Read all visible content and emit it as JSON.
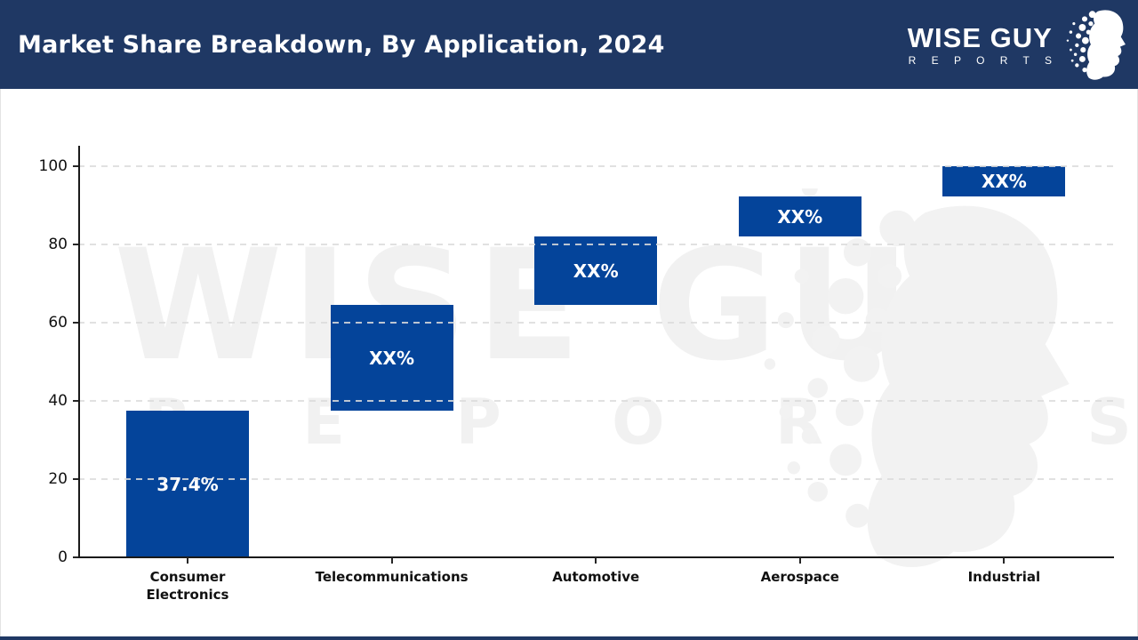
{
  "header": {
    "title": "Market Share Breakdown, By Application, 2024",
    "logo": {
      "line1": "WISE GUY",
      "line2": "R E P O R T S"
    }
  },
  "watermark": {
    "line1": "WISE GUY",
    "line2": "R E P O R T S"
  },
  "colors": {
    "header_bg": "#1f3864",
    "footer_bg": "#1f3864",
    "bar": "#04449a",
    "bar_label": "#ffffff",
    "axis": "#1a1a1a",
    "grid": "#dcdcdc",
    "watermark": "#f1f1f1"
  },
  "chart_data": {
    "type": "bar",
    "variant": "waterfall",
    "title": "Market Share Breakdown, By Application, 2024",
    "ylabel": "",
    "xlabel": "",
    "ylim": [
      0,
      105
    ],
    "y_ticks": [
      0,
      20,
      40,
      60,
      80,
      100
    ],
    "grid": "horizontal-dashed",
    "legend": "none",
    "categories": [
      "Consumer Electronics",
      "Telecommunications",
      "Automotive",
      "Aerospace",
      "Industrial"
    ],
    "segments": [
      {
        "category": "Consumer Electronics",
        "category_lines": [
          "Consumer",
          "Electronics"
        ],
        "start": 0,
        "end": 37.4,
        "value": 37.4,
        "value_label": "37.4%"
      },
      {
        "category": "Telecommunications",
        "category_lines": [
          "Telecommunications"
        ],
        "start": 37.4,
        "end": 64.5,
        "value": 27.1,
        "value_label": "XX%"
      },
      {
        "category": "Automotive",
        "category_lines": [
          "Automotive"
        ],
        "start": 64.5,
        "end": 82.0,
        "value": 17.5,
        "value_label": "XX%"
      },
      {
        "category": "Aerospace",
        "category_lines": [
          "Aerospace"
        ],
        "start": 82.0,
        "end": 92.3,
        "value": 10.3,
        "value_label": "XX%"
      },
      {
        "category": "Industrial",
        "category_lines": [
          "Industrial"
        ],
        "start": 92.3,
        "end": 100,
        "value": 7.7,
        "value_label": "XX%"
      }
    ]
  }
}
